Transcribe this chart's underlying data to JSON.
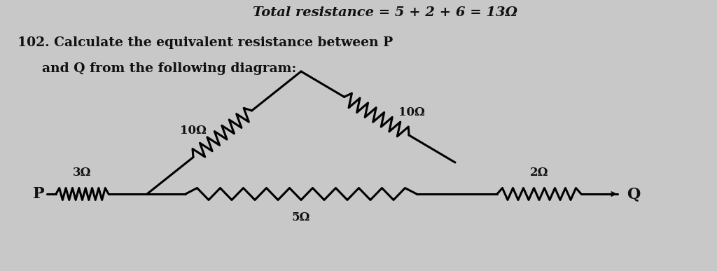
{
  "title_line1": "Total resistance = 5 + 2 + 6 = 13 Ω",
  "title_line2": "102. Calculate the equivalent resistance between P",
  "title_line3": "    and Q from the following diagram:",
  "bg_color": "#c8c8c8",
  "text_color": "#111111",
  "resistor_color": "#000000",
  "label_3": "3Ω",
  "label_10a": "10Ω",
  "label_10b": "10Ω",
  "label_5": "5Ω",
  "label_2": "2Ω",
  "label_P": "P",
  "label_Q": "Q",
  "figsize": [
    10.24,
    3.87
  ],
  "dpi": 100
}
